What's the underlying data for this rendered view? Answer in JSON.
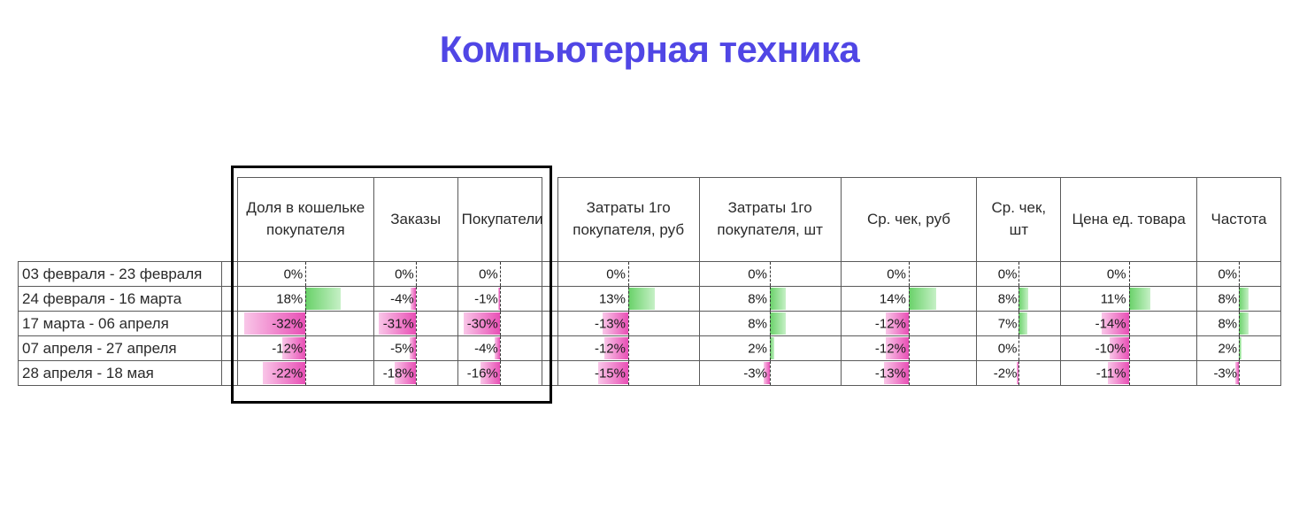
{
  "title": "Компьютерная техника",
  "title_color": "#5046e5",
  "title_fontsize": 42,
  "background_color": "#ffffff",
  "grid_color": "#5a5a5a",
  "text_color": "#2a2a2a",
  "pos_gradient": [
    "#68d168",
    "#c6f0c6"
  ],
  "neg_gradient": [
    "#e84fb5",
    "#f9c6e8"
  ],
  "max_abs_pct": 35,
  "columns": [
    "Доля в кошельке покупателя",
    "Заказы",
    "Покупатели",
    "Затраты 1го покупателя, руб",
    "Затраты 1го покупателя, шт",
    "Ср. чек, руб",
    "Ср. чек, шт",
    "Цена ед. товара",
    "Частота"
  ],
  "rows": [
    {
      "label": "03 февраля - 23 февраля",
      "values": [
        0,
        0,
        0,
        0,
        0,
        0,
        0,
        0,
        0
      ]
    },
    {
      "label": "24 февраля - 16 марта",
      "values": [
        18,
        -4,
        -1,
        13,
        8,
        14,
        8,
        11,
        8
      ]
    },
    {
      "label": "17 марта - 06 апреля",
      "values": [
        -32,
        -31,
        -30,
        -13,
        8,
        -12,
        7,
        -14,
        8
      ]
    },
    {
      "label": "07 апреля - 27 апреля",
      "values": [
        -12,
        -5,
        -4,
        -12,
        2,
        -12,
        0,
        -10,
        2
      ]
    },
    {
      "label": "28 апреля - 18 мая",
      "values": [
        -22,
        -18,
        -16,
        -15,
        -3,
        -13,
        -2,
        -11,
        -3
      ]
    }
  ],
  "highlight": {
    "col_start": 0,
    "col_end": 2
  },
  "spacers_after_col": [
    2
  ],
  "col_widths": {
    "label": 230,
    "spacer": 18,
    "narrow_cols": [
      1,
      2,
      6,
      8
    ],
    "wide_cols": [
      3,
      4
    ]
  }
}
